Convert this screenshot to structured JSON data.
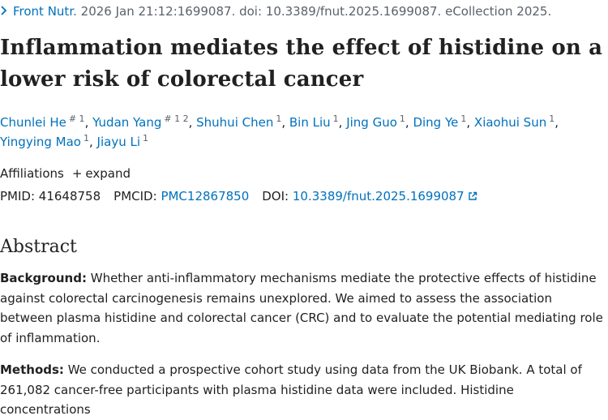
{
  "citation": {
    "journal": "Front Nutr",
    "rest": ". 2026 Jan 21:12:1699087. doi: 10.3389/fnut.2025.1699087. eCollection 2025."
  },
  "title": "Inflammation mediates the effect of histidine on a lower risk of colorectal cancer",
  "authors": [
    {
      "name": "Chunlei He",
      "sup": "# 1"
    },
    {
      "name": "Yudan Yang",
      "sup": "# 1 2"
    },
    {
      "name": "Shuhui Chen",
      "sup": "1"
    },
    {
      "name": "Bin Liu",
      "sup": "1"
    },
    {
      "name": "Jing Guo",
      "sup": "1"
    },
    {
      "name": "Ding Ye",
      "sup": "1"
    },
    {
      "name": "Xiaohui Sun",
      "sup": "1"
    },
    {
      "name": "Yingying Mao",
      "sup": "1"
    },
    {
      "name": "Jiayu Li",
      "sup": "1"
    }
  ],
  "affiliations": {
    "label": "Affiliations",
    "toggle": "expand"
  },
  "identifiers": {
    "pmid_label": "PMID:",
    "pmid": "41648758",
    "pmcid_label": "PMCID:",
    "pmcid": "PMC12867850",
    "doi_label": "DOI:",
    "doi": "10.3389/fnut.2025.1699087"
  },
  "abstract": {
    "heading": "Abstract",
    "background_label": "Background:",
    "background_text": " Whether anti-inflammatory mechanisms mediate the protective effects of histidine against colorectal carcinogenesis remains unexplored. We aimed to assess the association between plasma histidine and colorectal cancer (CRC) and to evaluate the potential mediating role of inflammation.",
    "methods_label": "Methods:",
    "methods_text": " We conducted a prospective cohort study using data from the UK Biobank. A total of 261,082 cancer-free participants with plasma histidine data were included. Histidine concentrations"
  }
}
